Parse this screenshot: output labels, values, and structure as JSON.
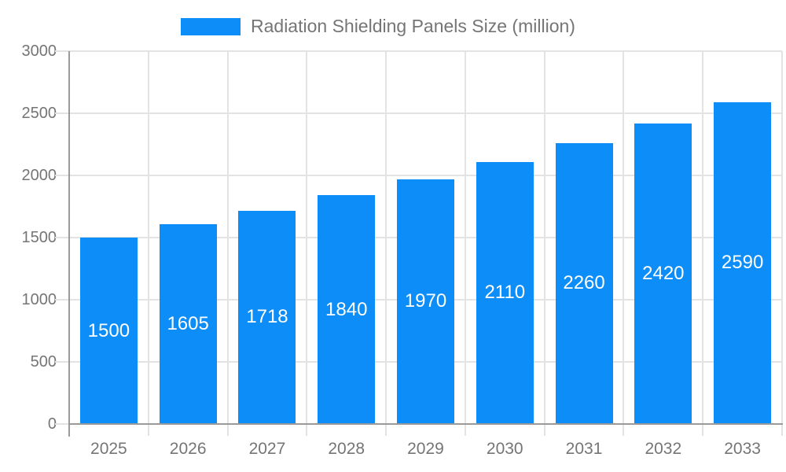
{
  "chart_data": {
    "type": "bar",
    "title": "Radiation Shielding Panels Size (million)",
    "categories": [
      "2025",
      "2026",
      "2027",
      "2028",
      "2029",
      "2030",
      "2031",
      "2032",
      "2033"
    ],
    "values": [
      1500,
      1605,
      1718,
      1840,
      1970,
      2110,
      2260,
      2420,
      2590
    ],
    "series": [
      {
        "name": "Radiation Shielding Panels Size (million)",
        "values": [
          1500,
          1605,
          1718,
          1840,
          1970,
          2110,
          2260,
          2420,
          2590
        ]
      }
    ],
    "xlabel": "",
    "ylabel": "",
    "ylim": [
      0,
      3000
    ],
    "yticks": [
      0,
      500,
      1000,
      1500,
      2000,
      2500,
      3000
    ],
    "grid": true,
    "legend_position": "top",
    "bar_labels_shown": true,
    "colors": {
      "bar": "#0d8df7",
      "bar_label_text": "#ffffff",
      "grid": "#e3e3e3",
      "axis": "#9a9a9a",
      "text": "#757575",
      "background": "#ffffff"
    }
  }
}
